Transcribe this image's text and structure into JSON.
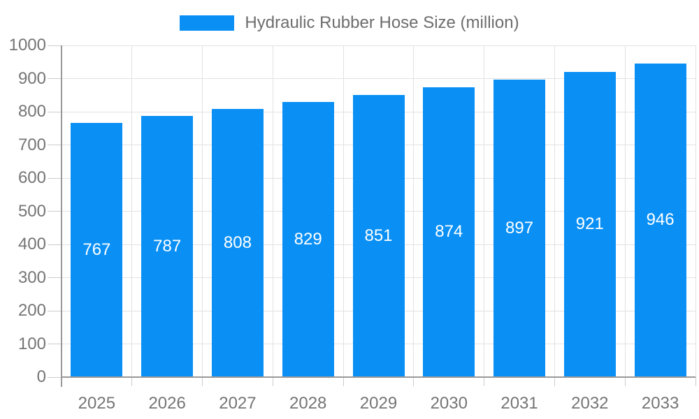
{
  "legend": {
    "label": "Hydraulic Rubber Hose Size (million)"
  },
  "chart_data": {
    "type": "bar",
    "title": "Hydraulic Rubber Hose Size (million)",
    "series_name": "Hydraulic Rubber Hose Size (million)",
    "categories": [
      "2025",
      "2026",
      "2027",
      "2028",
      "2029",
      "2030",
      "2031",
      "2032",
      "2033"
    ],
    "values": [
      767,
      787,
      808,
      829,
      851,
      874,
      897,
      921,
      946
    ],
    "xlabel": "",
    "ylabel": "",
    "ylim": [
      0,
      1000
    ],
    "y_tick_step": 100,
    "y_ticks": [
      0,
      100,
      200,
      300,
      400,
      500,
      600,
      700,
      800,
      900,
      1000
    ],
    "grid": true,
    "legend_position": "top-center",
    "bar_label_position": "inside-center",
    "colors": {
      "bar": "#0a90f5",
      "bar_label": "#ffffff",
      "grid": "#e2e2e2",
      "axis": "#999999",
      "tick": "#cccccc",
      "tick_label": "#757575",
      "legend_label": "#6d6d6d"
    }
  }
}
